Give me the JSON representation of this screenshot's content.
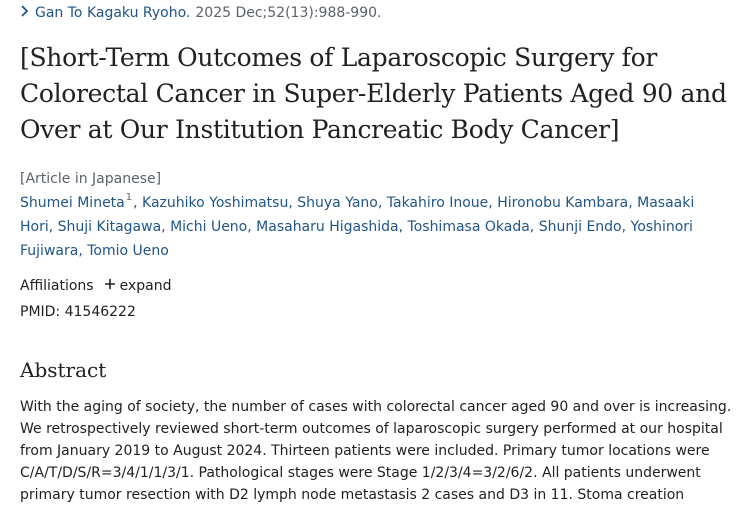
{
  "journal": {
    "name": "Gan To Kagaku Ryoho.",
    "citation": "2025 Dec;52(13):988-990."
  },
  "article": {
    "title": "[Short-Term Outcomes of Laparoscopic Surgery for Colorectal Cancer in Super-Elderly Patients Aged 90 and Over at Our Institution Pancreatic Body Cancer]",
    "language_note": "[Article in Japanese]",
    "authors": [
      {
        "name": "Shumei Mineta",
        "sup": "1"
      },
      {
        "name": "Kazuhiko Yoshimatsu"
      },
      {
        "name": "Shuya Yano"
      },
      {
        "name": "Takahiro Inoue"
      },
      {
        "name": "Hironobu Kambara"
      },
      {
        "name": "Masaaki Hori"
      },
      {
        "name": "Shuji Kitagawa"
      },
      {
        "name": "Michi Ueno"
      },
      {
        "name": "Masaharu Higashida"
      },
      {
        "name": "Toshimasa Okada"
      },
      {
        "name": "Shunji Endo"
      },
      {
        "name": "Yoshinori Fujiwara"
      },
      {
        "name": "Tomio Ueno"
      }
    ],
    "affiliations_label": "Affiliations",
    "expand_label": "expand",
    "pmid": "PMID: 41546222"
  },
  "abstract": {
    "heading": "Abstract",
    "lines": [
      "With the aging of society, the number of cases with colorectal cancer aged 90 and over is increasing.",
      "We retrospectively reviewed short-term outcomes of laparoscopic surgery performed at our hospital",
      "from January 2019 to August 2024. Thirteen patients were included. Primary tumor locations were",
      "C/A/T/D/S/R=3/4/1/1/3/1. Pathological stages were Stage 1/2/3/4=3/2/6/2. All patients underwent",
      "primary tumor resection with D2 lymph node metastasis 2 cases and D3 in 11. Stoma creation"
    ]
  },
  "colors": {
    "link": "#20558a",
    "muted": "#5b616b",
    "text": "#212121"
  },
  "icons": {
    "journal": "chevron-right-icon",
    "expand": "plus-icon"
  }
}
